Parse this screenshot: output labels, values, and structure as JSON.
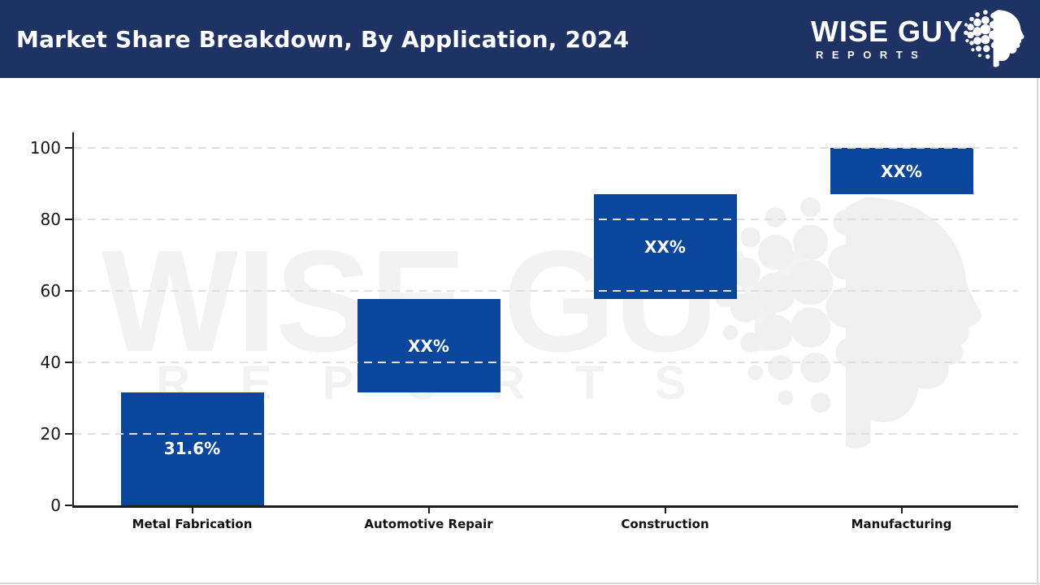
{
  "header": {
    "title": "Market Share Breakdown, By Application, 2024",
    "bg_color": "#1e3363",
    "logo": {
      "line1": "WISE GUY",
      "line2": "REPORTS"
    }
  },
  "watermark": {
    "line1": "WISE GUY",
    "line2": "REPORTS"
  },
  "chart_data": {
    "type": "bar",
    "subtype": "waterfall",
    "title": "Market Share Breakdown, By Application, 2024",
    "categories": [
      "Metal Fabrication",
      "Automotive Repair",
      "Construction",
      "Manufacturing"
    ],
    "bars": [
      {
        "category": "Metal Fabrication",
        "start": 0,
        "end": 31.6,
        "label": "31.6%"
      },
      {
        "category": "Automotive Repair",
        "start": 31.6,
        "end": 57.7,
        "label": "XX%"
      },
      {
        "category": "Construction",
        "start": 57.7,
        "end": 87.0,
        "label": "XX%"
      },
      {
        "category": "Manufacturing",
        "start": 87.0,
        "end": 100,
        "label": "XX%"
      }
    ],
    "bar_color": "#0a469b",
    "bar_label_color": "#ffffff",
    "xlabel": "",
    "ylabel": "",
    "ylim": [
      0,
      105
    ],
    "yticks": [
      0,
      20,
      40,
      60,
      80,
      100
    ],
    "grid": "horizontal-dashed",
    "legend": "none"
  }
}
